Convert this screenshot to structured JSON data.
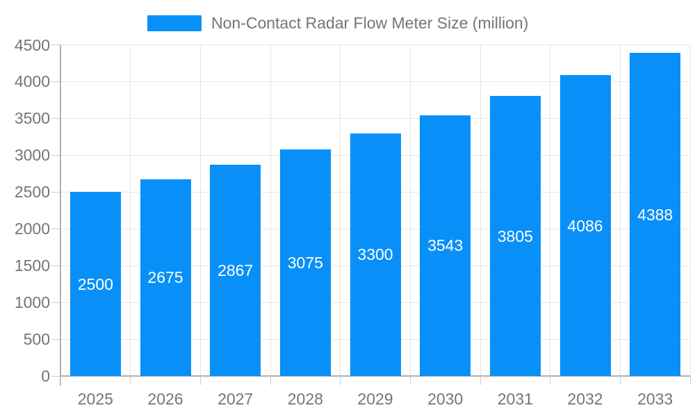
{
  "chart_data": {
    "type": "bar",
    "title": "Non-Contact Radar Flow Meter Size (million)",
    "legend": {
      "label": "Non-Contact Radar Flow Meter Size (million)",
      "position": "top",
      "swatch_color": "#0990f8"
    },
    "categories": [
      "2025",
      "2026",
      "2027",
      "2028",
      "2029",
      "2030",
      "2031",
      "2032",
      "2033"
    ],
    "series": [
      {
        "name": "Non-Contact Radar Flow Meter Size (million)",
        "color": "#0990f8",
        "values": [
          2500,
          2675,
          2867,
          3075,
          3300,
          3543,
          3805,
          4086,
          4388
        ]
      }
    ],
    "bar_labels": [
      "2500",
      "2675",
      "2867",
      "3075",
      "3300",
      "3543",
      "3805",
      "4086",
      "4388"
    ],
    "xlabel": "",
    "ylabel": "",
    "ylim": [
      0,
      4500
    ],
    "ytick_step": 500,
    "yticks": [
      0,
      500,
      1000,
      1500,
      2000,
      2500,
      3000,
      3500,
      4000,
      4500
    ],
    "grid": true,
    "colors": {
      "bar": "#0990f8",
      "bar_label_text": "#ffffff",
      "axis_text": "#757575",
      "grid_line": "#e6e6e6",
      "tick_line": "#cccccc",
      "axis_line": "#b0b0b0",
      "background": "#ffffff"
    }
  }
}
